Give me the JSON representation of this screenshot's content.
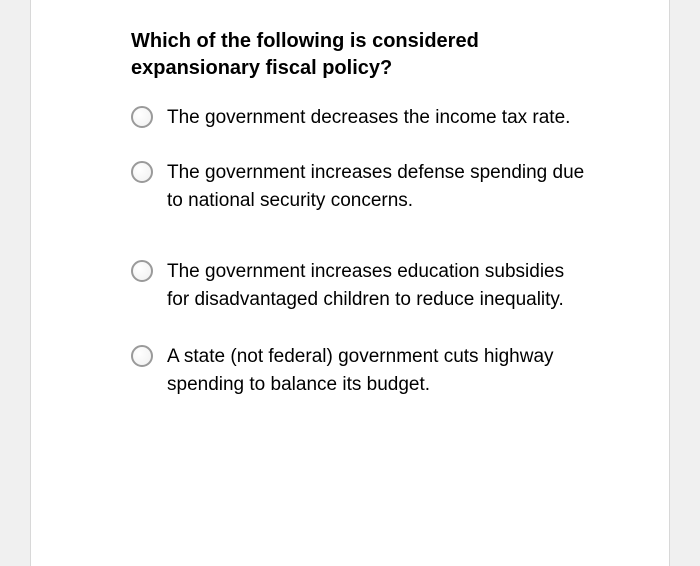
{
  "question": {
    "text": "Which of the following is considered expansionary fiscal policy?",
    "text_color": "#000000",
    "font_size_pt": 20,
    "font_weight": "bold"
  },
  "options": [
    {
      "label": "The government decreases the income tax rate.",
      "selected": false
    },
    {
      "label": "The government increases defense spending due to national security concerns.",
      "selected": false
    },
    {
      "label": "The government increases education subsidies for disadvantaged children to reduce inequality.",
      "selected": false
    },
    {
      "label": "A state (not federal) government cuts highway spending to balance its budget.",
      "selected": false
    }
  ],
  "styling": {
    "background_color": "#f0f0f0",
    "card_background": "#ffffff",
    "card_border_color": "#d8d8d8",
    "radio_border_color": "#9a9a9a",
    "option_font_size_pt": 19,
    "option_text_color": "#000000",
    "option_line_height": 1.5
  }
}
